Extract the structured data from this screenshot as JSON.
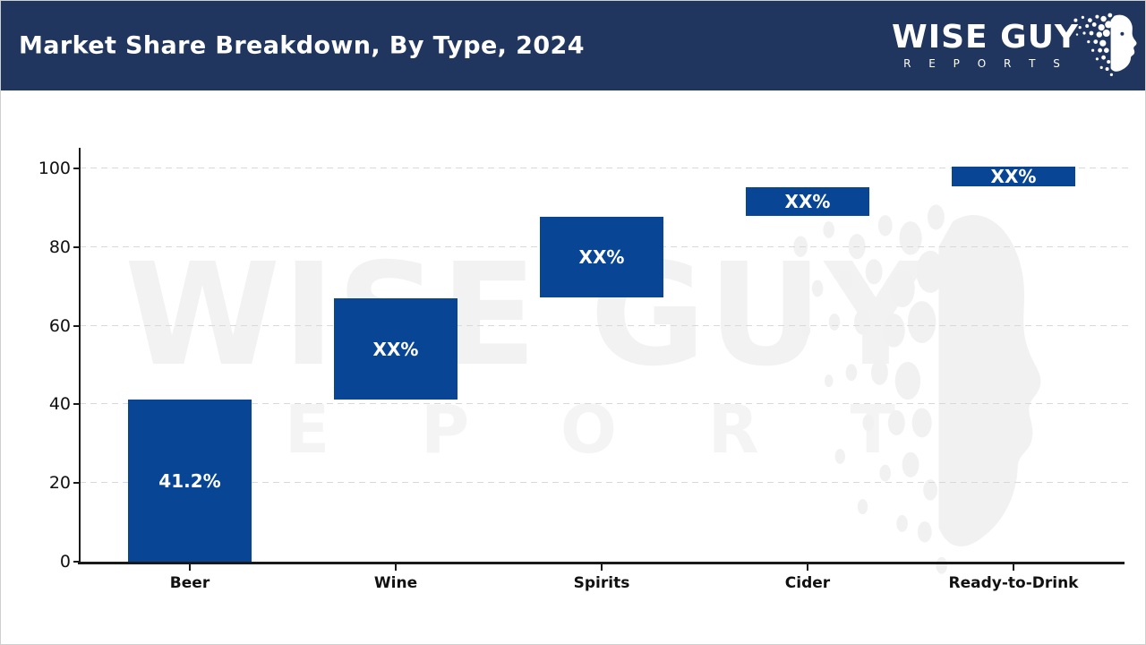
{
  "header": {
    "title": "Market Share Breakdown, By Type, 2024",
    "logo": {
      "line1": "WISE GUY",
      "line2": "R E P O R T S"
    }
  },
  "watermark": {
    "line1": "WISE GUY",
    "line2": "R E P O R T S"
  },
  "chart_data": {
    "type": "bar",
    "subtype": "floating-waterfall",
    "title": "Market Share Breakdown, By Type, 2024",
    "xlabel": "",
    "ylabel": "",
    "categories": [
      "Beer",
      "Wine",
      "Spirits",
      "Cider",
      "Ready-to-Drink"
    ],
    "segments": [
      {
        "category": "Beer",
        "start": 0,
        "end": 41.2,
        "label": "41.2%"
      },
      {
        "category": "Wine",
        "start": 41.2,
        "end": 67.0,
        "label": "XX%"
      },
      {
        "category": "Spirits",
        "start": 67.2,
        "end": 87.7,
        "label": "XX%"
      },
      {
        "category": "Cider",
        "start": 87.9,
        "end": 95.2,
        "label": "XX%"
      },
      {
        "category": "Ready-to-Drink",
        "start": 95.4,
        "end": 100.4,
        "label": "XX%"
      }
    ],
    "yticks": [
      0,
      20,
      40,
      60,
      80,
      100
    ],
    "ylim": [
      0,
      105
    ],
    "grid": "dashed-horizontal",
    "legend": "none",
    "bar_color": "#084595",
    "bar_label_color": "#ffffff"
  },
  "colors": {
    "header_bg": "#21365f",
    "bar": "#084595",
    "axis": "#1a1a1a",
    "gridline": "#d9d9d9",
    "watermark": "#f2f2f2",
    "card_border": "#cfcfcf"
  }
}
